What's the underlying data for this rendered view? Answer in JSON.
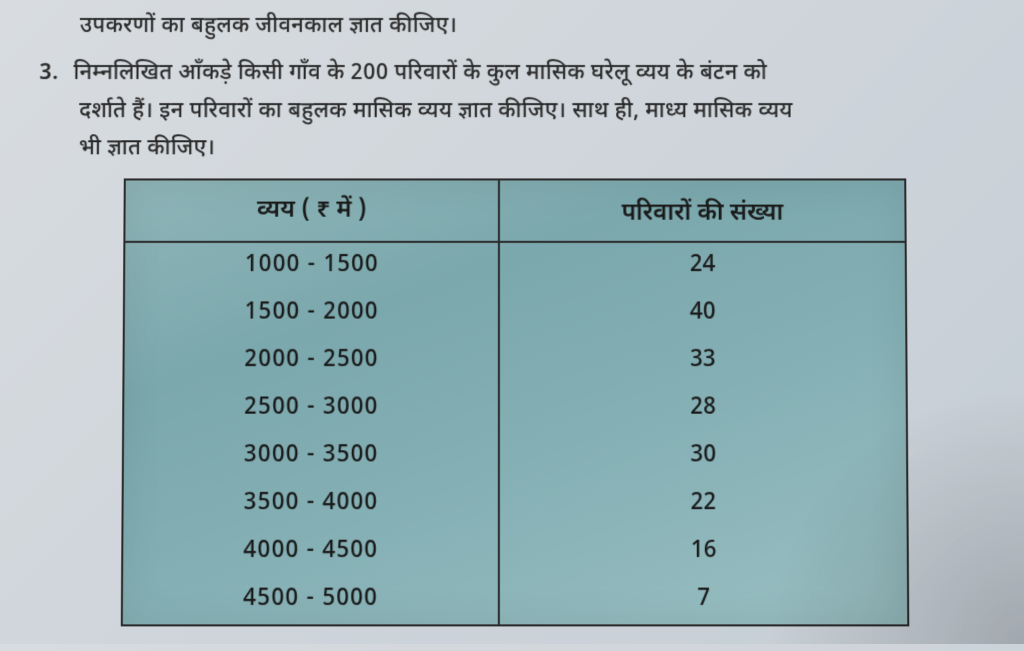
{
  "question": {
    "prev_line": "उपकरणों का बहुलक जीवनकाल ज्ञात कीजिए।",
    "number": "3.",
    "line1": "निम्नलिखित आँकड़े किसी गाँव के 200 परिवारों के कुल मासिक घरेलू व्यय के बंटन को",
    "line2": "दर्शाते हैं। इन परिवारों का बहुलक मासिक व्यय ज्ञात कीजिए। साथ ही, माध्य मासिक व्यय",
    "line3": "भी ज्ञात कीजिए।"
  },
  "table": {
    "headers": {
      "col1": "व्यय ( ₹ में )",
      "col2": "परिवारों की संख्या"
    },
    "rows": [
      {
        "expenditure": "1000 - 1500",
        "families": "24"
      },
      {
        "expenditure": "1500 - 2000",
        "families": "40"
      },
      {
        "expenditure": "2000 - 2500",
        "families": "33"
      },
      {
        "expenditure": "2500 - 3000",
        "families": "28"
      },
      {
        "expenditure": "3000 - 3500",
        "families": "30"
      },
      {
        "expenditure": "3500 - 4000",
        "families": "22"
      },
      {
        "expenditure": "4000 - 4500",
        "families": "16"
      },
      {
        "expenditure": "4500 - 5000",
        "families": "7"
      }
    ],
    "styling": {
      "background_gradient": [
        "#8fb5b8",
        "#7ba8ad",
        "#85b0b5",
        "#9abfc2"
      ],
      "border_color": "#2a2a2a",
      "text_color": "#1a1a1a",
      "header_fontsize": 24,
      "cell_fontsize": 23,
      "col1_width_pct": 48
    }
  },
  "page_style": {
    "background_gradient": [
      "#d8dce0",
      "#c5cdd5"
    ],
    "text_color": "#2a2a2a",
    "body_fontsize": 22
  }
}
